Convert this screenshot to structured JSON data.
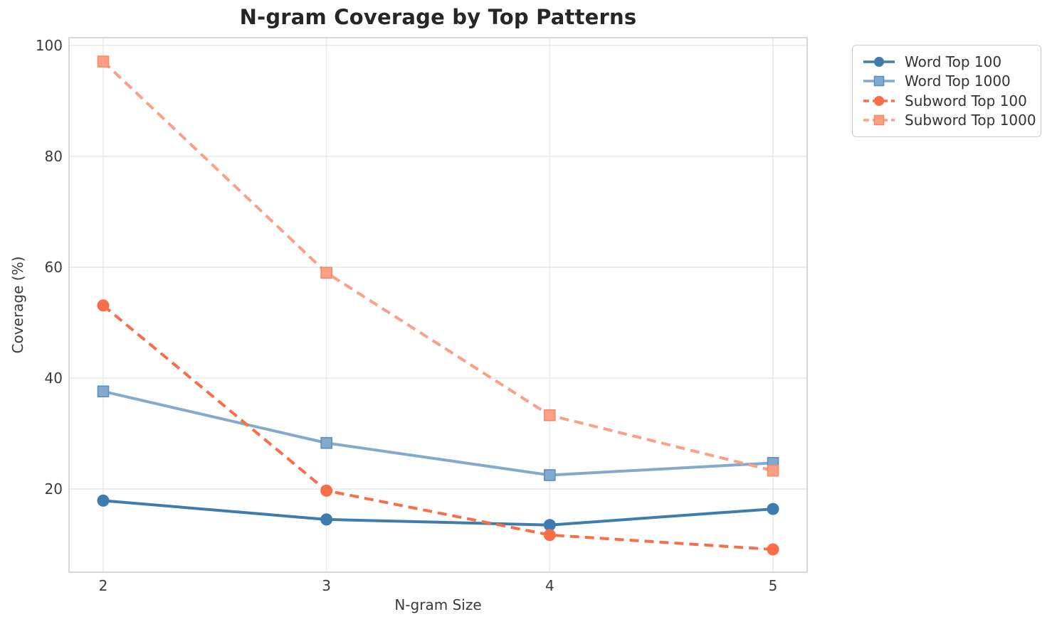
{
  "title": "N-gram Coverage by Top Patterns",
  "chart_data": {
    "type": "line",
    "title": "N-gram Coverage by Top Patterns",
    "xlabel": "N-gram Size",
    "ylabel": "Coverage (%)",
    "x": [
      2,
      3,
      4,
      5
    ],
    "x_tick_labels": [
      "2",
      "3",
      "4",
      "5"
    ],
    "y_ticks": [
      20,
      40,
      60,
      80,
      100
    ],
    "y_tick_labels": [
      "20",
      "40",
      "60",
      "80",
      "100"
    ],
    "xlim": [
      2,
      5
    ],
    "ylim": [
      5,
      101.4
    ],
    "grid": true,
    "legend_position": "outside-upper-right",
    "series": [
      {
        "name": "Word Top 100",
        "values": [
          17.9,
          14.5,
          13.5,
          16.4
        ],
        "color": "#3F7CAE",
        "marker": "circle",
        "marker_edge": "#3F7CAE",
        "line_style": "solid"
      },
      {
        "name": "Word Top 1000",
        "values": [
          37.6,
          28.3,
          22.5,
          24.7
        ],
        "color": "#83A9CD",
        "marker": "square",
        "marker_edge": "#5E8FBC",
        "line_style": "solid"
      },
      {
        "name": "Subword Top 100",
        "values": [
          53.1,
          19.7,
          11.7,
          9.1
        ],
        "color": "#F96D48",
        "marker": "circle",
        "marker_edge": "#F96D48",
        "line_style": "dashed"
      },
      {
        "name": "Subword Top 1000",
        "values": [
          97.1,
          59.0,
          33.3,
          23.3
        ],
        "color": "#FBA084",
        "marker": "square",
        "marker_edge": "#F98965",
        "line_style": "dashed"
      }
    ]
  }
}
